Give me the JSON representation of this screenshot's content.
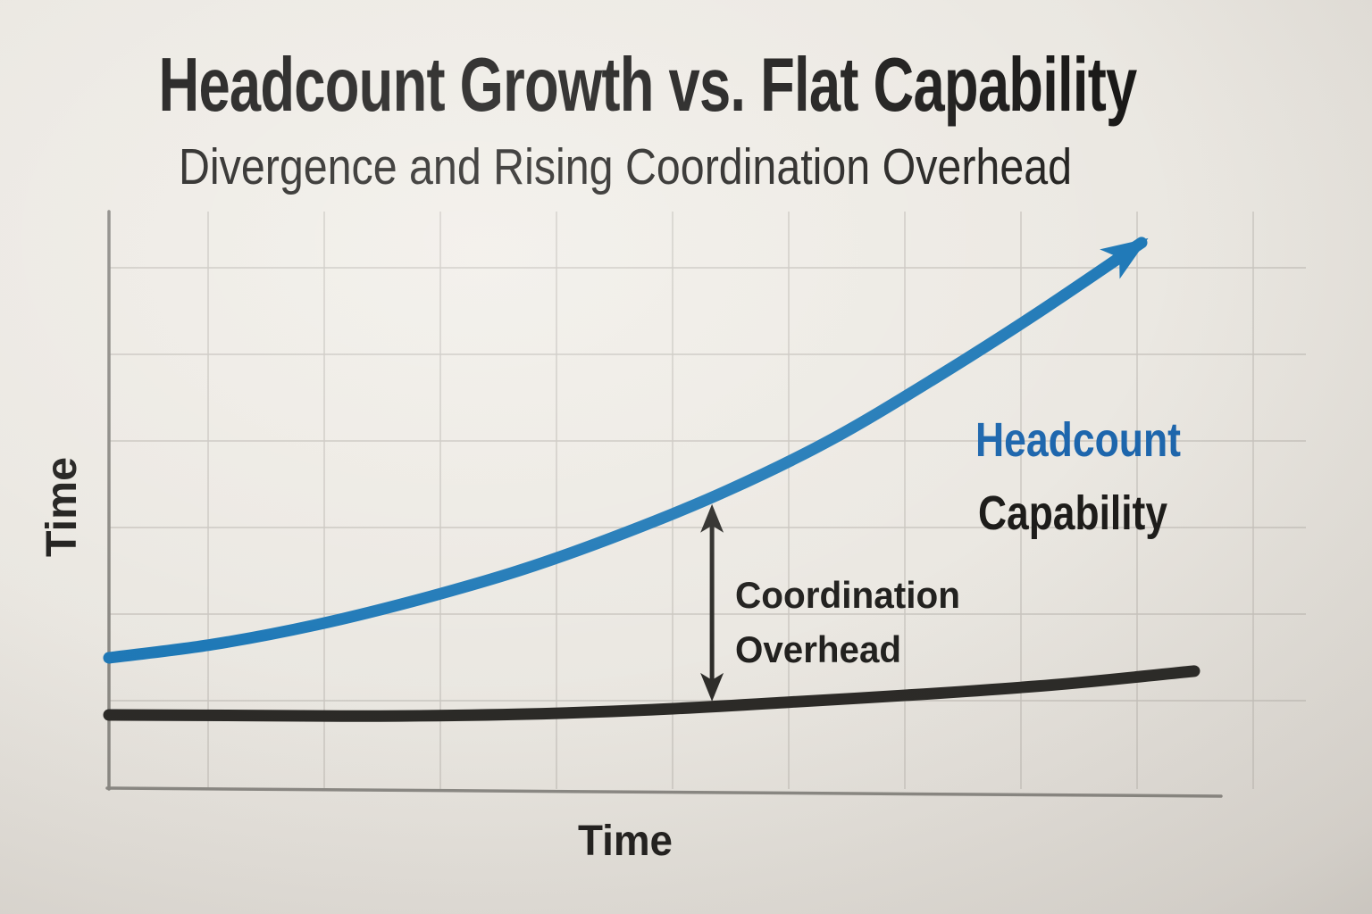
{
  "chart_data": {
    "type": "line",
    "title": "Headcount Growth vs. Flat Capability",
    "subtitle": "Divergence and Rising Coordination Overhead",
    "xlabel": "Time",
    "ylabel": "Time",
    "x_range": [
      0,
      1.08
    ],
    "y_range": [
      0,
      1
    ],
    "grid": true,
    "legend_position": "inline-right-of-curves",
    "series": [
      {
        "name": "Headcount",
        "color": "#1f79b7",
        "label_color": "#1d66ad",
        "style": "curve-with-arrowhead",
        "x": [
          0,
          0.1,
          0.2,
          0.3,
          0.4,
          0.5,
          0.6,
          0.7,
          0.8,
          0.9,
          1.0
        ],
        "values": [
          0.226,
          0.249,
          0.283,
          0.327,
          0.379,
          0.443,
          0.517,
          0.605,
          0.711,
          0.825,
          0.946
        ]
      },
      {
        "name": "Capability",
        "color": "#2b2a27",
        "label_color": "#1d1c1a",
        "style": "curve",
        "x": [
          0,
          0.131,
          0.263,
          0.395,
          0.526,
          0.658,
          0.789,
          0.921,
          1.051
        ],
        "values": [
          0.127,
          0.126,
          0.125,
          0.128,
          0.136,
          0.149,
          0.163,
          0.18,
          0.203
        ]
      }
    ],
    "annotation": {
      "label": "Coordination Overhead",
      "label_lines": [
        "Coordination",
        "Overhead"
      ],
      "type": "vertical-double-arrow",
      "x": 0.584,
      "value_from": 0.155,
      "value_to": 0.488,
      "color": "#2e2d2a"
    }
  },
  "colors": {
    "background_center": "#f1eee8",
    "background_edge": "#d5d1cb",
    "grid": "#c2beb8",
    "axis": "#8b8984",
    "title_text": "#1a1918"
  }
}
